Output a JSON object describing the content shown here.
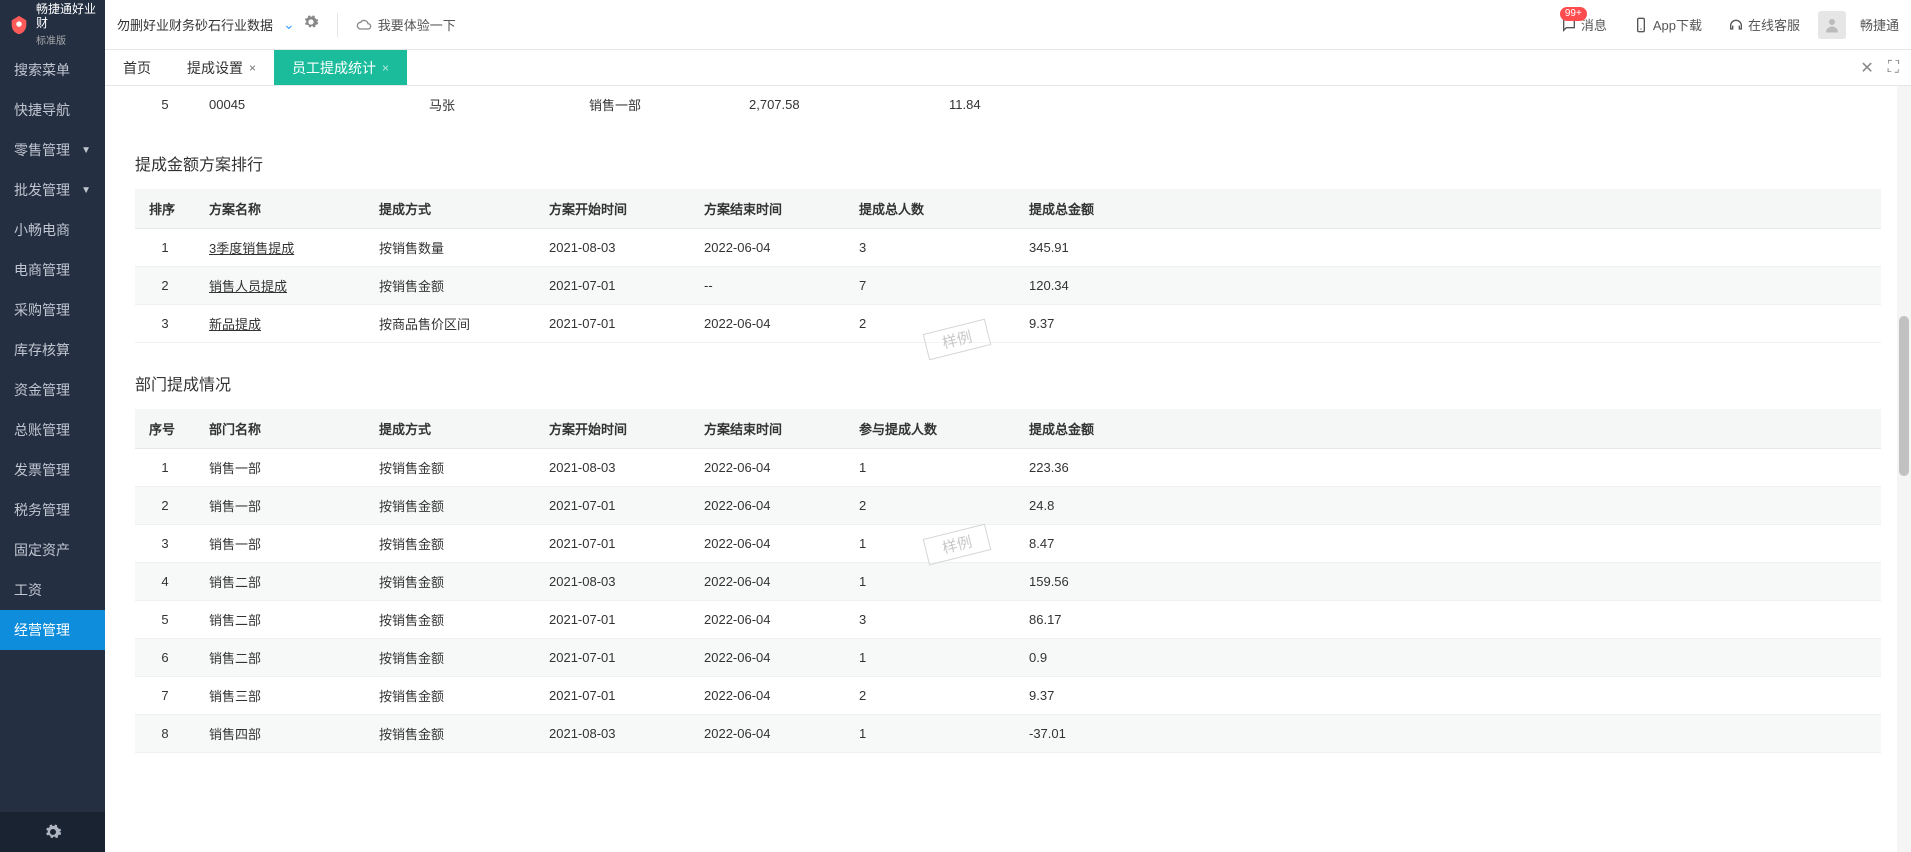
{
  "brand": {
    "name": "畅捷通好业财",
    "edition": "标准版"
  },
  "topbar": {
    "org": "勿删好业财务砂石行业数据",
    "try": "我要体验一下",
    "msg": "消息",
    "badge": "99+",
    "app": "App下载",
    "support": "在线客服",
    "username": "畅捷通"
  },
  "sidebar": {
    "items": [
      {
        "label": "搜索菜单",
        "expand": false
      },
      {
        "label": "快捷导航",
        "expand": false
      },
      {
        "label": "零售管理",
        "expand": true
      },
      {
        "label": "批发管理",
        "expand": true
      },
      {
        "label": "小畅电商",
        "expand": false
      },
      {
        "label": "电商管理",
        "expand": false
      },
      {
        "label": "采购管理",
        "expand": false
      },
      {
        "label": "库存核算",
        "expand": false
      },
      {
        "label": "资金管理",
        "expand": false
      },
      {
        "label": "总账管理",
        "expand": false
      },
      {
        "label": "发票管理",
        "expand": false
      },
      {
        "label": "税务管理",
        "expand": false
      },
      {
        "label": "固定资产",
        "expand": false
      },
      {
        "label": "工资",
        "expand": false
      },
      {
        "label": "经营管理",
        "expand": false,
        "active": true
      }
    ]
  },
  "tabs": {
    "home": "首页",
    "t1": "提成设置",
    "t2": "员工提成统计"
  },
  "topRow": {
    "rank": "5",
    "code": "00045",
    "name": "马张",
    "dept": "销售一部",
    "v1": "2,707.58",
    "v2": "11.84"
  },
  "section1": {
    "title": "提成金额方案排行",
    "headers": [
      "排序",
      "方案名称",
      "提成方式",
      "方案开始时间",
      "方案结束时间",
      "提成总人数",
      "提成总金额"
    ],
    "rows": [
      {
        "r": "1",
        "name": "3季度销售提成",
        "method": "按销售数量",
        "start": "2021-08-03",
        "end": "2022-06-04",
        "people": "3",
        "amount": "345.91"
      },
      {
        "r": "2",
        "name": "销售人员提成",
        "method": "按销售金额",
        "start": "2021-07-01",
        "end": "--",
        "people": "7",
        "amount": "120.34"
      },
      {
        "r": "3",
        "name": "新品提成",
        "method": "按商品售价区间",
        "start": "2021-07-01",
        "end": "2022-06-04",
        "people": "2",
        "amount": "9.37"
      }
    ]
  },
  "section2": {
    "title": "部门提成情况",
    "headers": [
      "序号",
      "部门名称",
      "提成方式",
      "方案开始时间",
      "方案结束时间",
      "参与提成人数",
      "提成总金额"
    ],
    "rows": [
      {
        "r": "1",
        "dept": "销售一部",
        "method": "按销售金额",
        "start": "2021-08-03",
        "end": "2022-06-04",
        "people": "1",
        "amount": "223.36"
      },
      {
        "r": "2",
        "dept": "销售一部",
        "method": "按销售金额",
        "start": "2021-07-01",
        "end": "2022-06-04",
        "people": "2",
        "amount": "24.8"
      },
      {
        "r": "3",
        "dept": "销售一部",
        "method": "按销售金额",
        "start": "2021-07-01",
        "end": "2022-06-04",
        "people": "1",
        "amount": "8.47"
      },
      {
        "r": "4",
        "dept": "销售二部",
        "method": "按销售金额",
        "start": "2021-08-03",
        "end": "2022-06-04",
        "people": "1",
        "amount": "159.56"
      },
      {
        "r": "5",
        "dept": "销售二部",
        "method": "按销售金额",
        "start": "2021-07-01",
        "end": "2022-06-04",
        "people": "3",
        "amount": "86.17"
      },
      {
        "r": "6",
        "dept": "销售二部",
        "method": "按销售金额",
        "start": "2021-07-01",
        "end": "2022-06-04",
        "people": "1",
        "amount": "0.9"
      },
      {
        "r": "7",
        "dept": "销售三部",
        "method": "按销售金额",
        "start": "2021-07-01",
        "end": "2022-06-04",
        "people": "2",
        "amount": "9.37"
      },
      {
        "r": "8",
        "dept": "销售四部",
        "method": "按销售金额",
        "start": "2021-08-03",
        "end": "2022-06-04",
        "people": "1",
        "amount": "-37.01"
      }
    ]
  },
  "watermark": "样例",
  "colors": {
    "sidebar_bg": "#242f42",
    "sidebar_active": "#0d8ddb",
    "tab_active": "#1abc9c",
    "badge": "#ff4d4f",
    "header_bg": "#f5f7f7"
  }
}
